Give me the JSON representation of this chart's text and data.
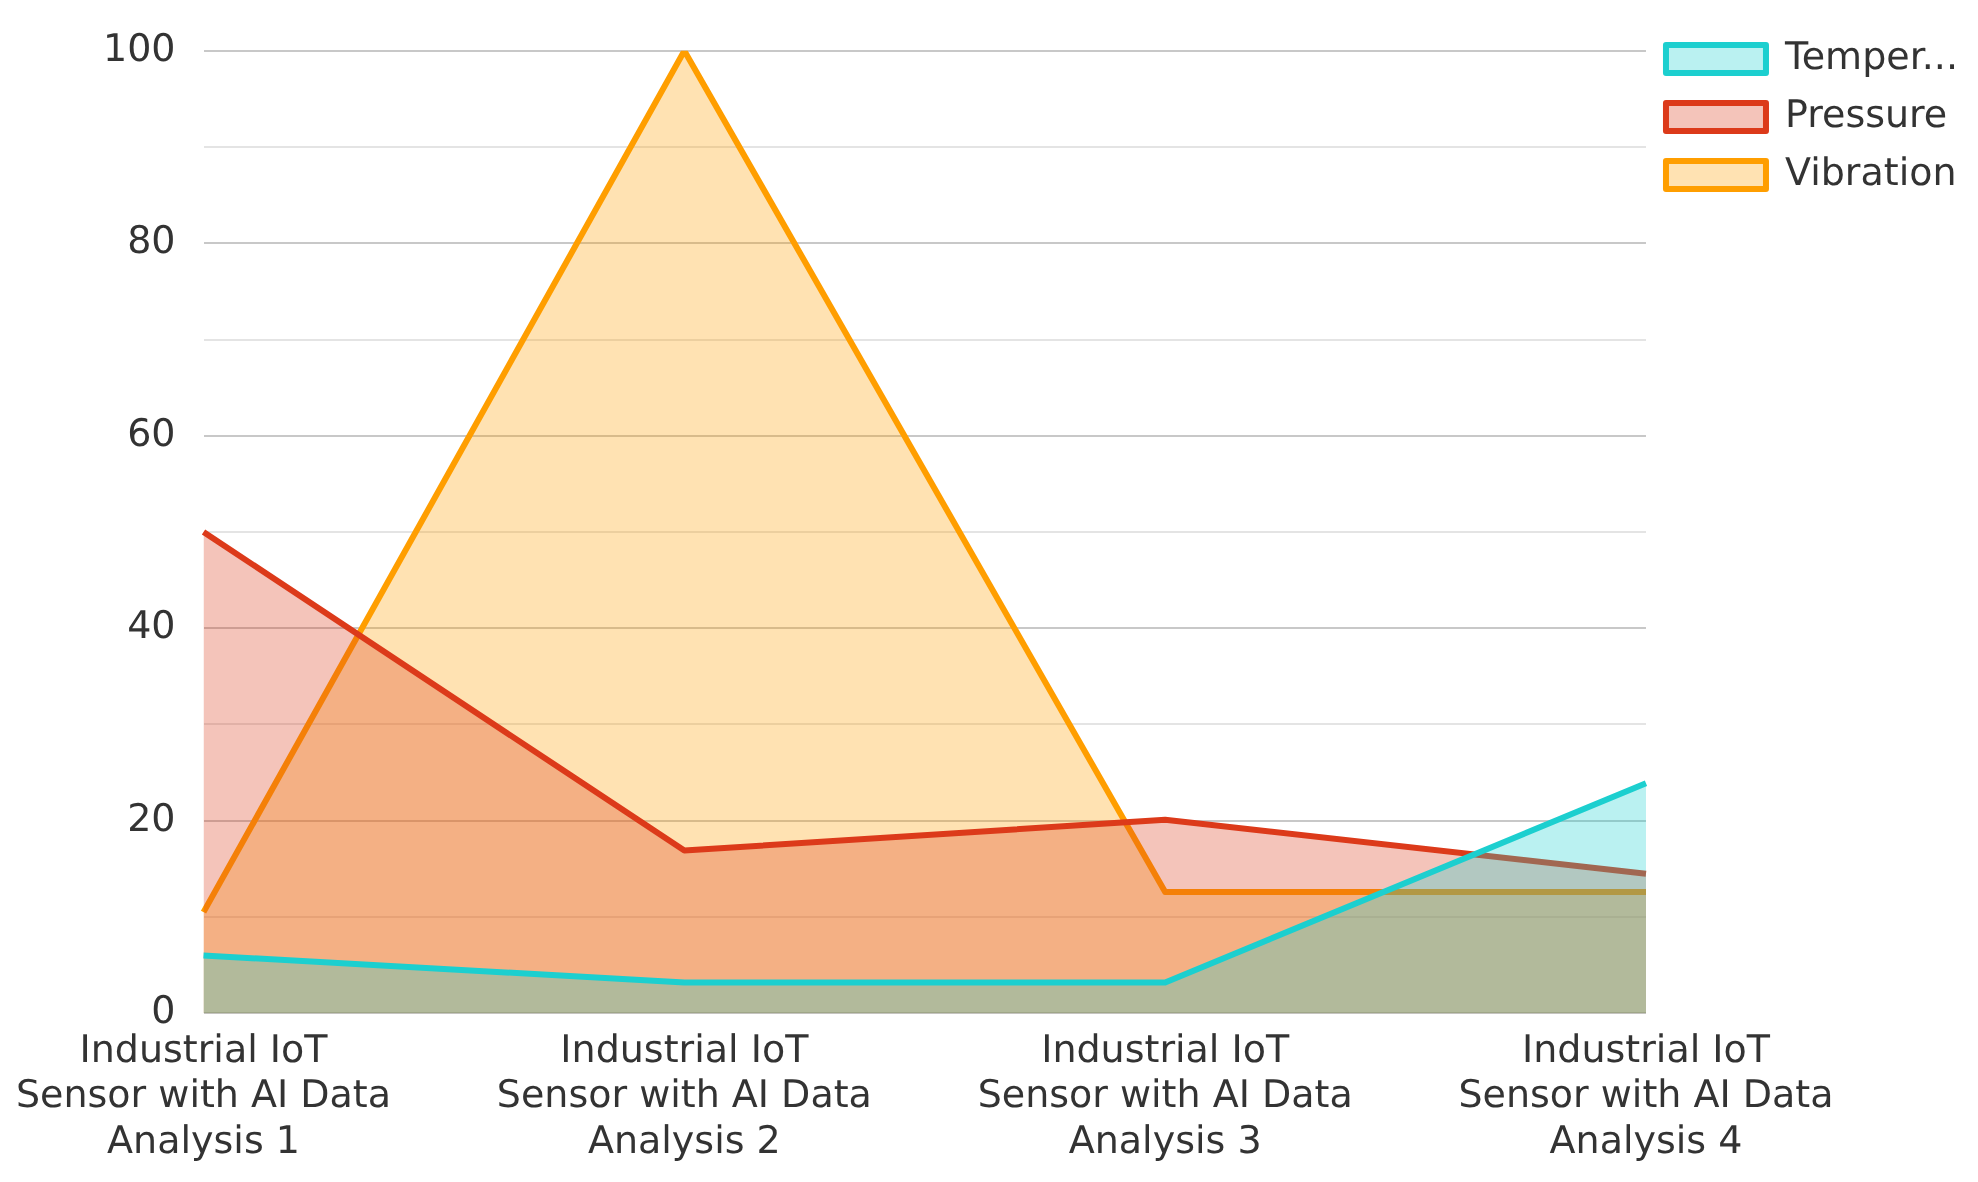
{
  "chart_data": {
    "type": "area",
    "categories": [
      "Industrial IoT Sensor with AI Data Analysis 1",
      "Industrial IoT Sensor with AI Data Analysis 2",
      "Industrial IoT Sensor with AI Data Analysis 3",
      "Industrial IoT Sensor with AI Data Analysis 4"
    ],
    "series": [
      {
        "name": "Temper...",
        "color": "#1ccfcf",
        "values": [
          6,
          3.2,
          3.2,
          23.9
        ]
      },
      {
        "name": "Pressure",
        "color": "#dc3a1a",
        "values": [
          50,
          16.9,
          20.1,
          14.5
        ]
      },
      {
        "name": "Vibration",
        "color": "#ff9e00",
        "values": [
          10.5,
          100,
          12.6,
          12.6
        ]
      }
    ],
    "ylim": [
      0,
      100
    ],
    "yticks": [
      0,
      {
        "value": 10,
        "label": null
      },
      20,
      {
        "value": 30,
        "label": null
      },
      40,
      {
        "value": 50,
        "label": null
      },
      60,
      {
        "value": 70,
        "label": null
      },
      80,
      {
        "value": 90,
        "label": null
      },
      100
    ],
    "grid": "y",
    "legend": "top right",
    "marker": "none",
    "line_style": "solid"
  }
}
